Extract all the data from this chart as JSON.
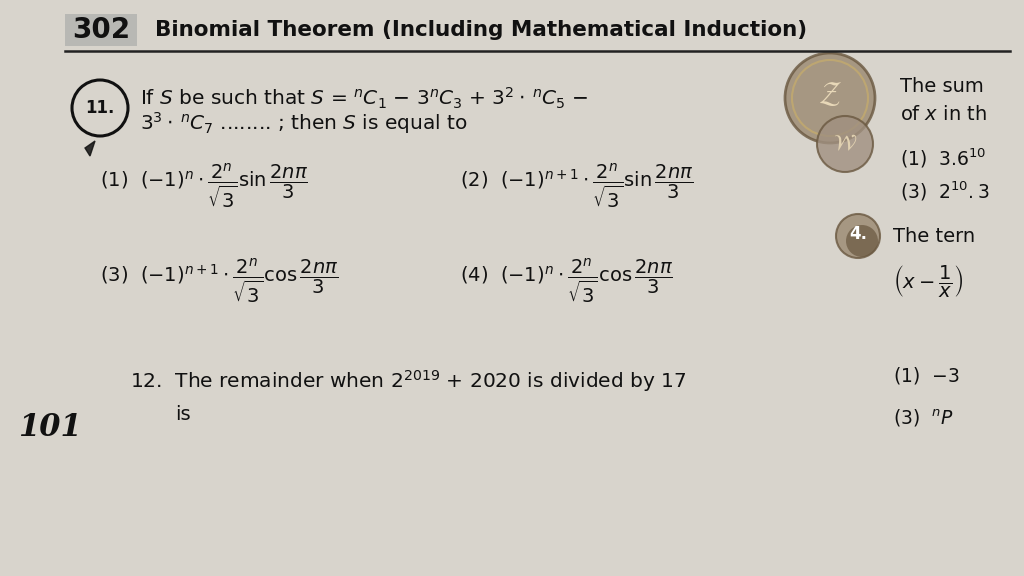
{
  "bg_color": "#d8d4cc",
  "title_number": "302",
  "title_text": "Binomial Theorem (Including Mathematical Induction)",
  "title_box_color": "#b0b0b0",
  "title_text_color": "#111111",
  "line_color": "#222222",
  "text_color": "#111111",
  "q11_line1": "If $S$ be such that $S$ = $^nC_1$ $-$ $3^nC_3$ $+$ $3^{2}\\cdot\\,^nC_5$ $-$",
  "q11_line2": "$3^3\\cdot\\,^nC_7$ ........ ; then $S$ is equal to",
  "opt1": "(1)  $(-1)^n\\cdot\\dfrac{2^n}{\\sqrt{3}}\\sin\\dfrac{2n\\pi}{3}$",
  "opt2": "(2)  $(-1)^{n+1}\\cdot\\dfrac{2^n}{\\sqrt{3}}\\sin\\dfrac{2n\\pi}{3}$",
  "opt3": "(3)  $(-1)^{n+1}\\cdot\\dfrac{2^n}{\\sqrt{3}}\\cos\\dfrac{2n\\pi}{3}$",
  "opt4": "(4)  $(-1)^{n}\\cdot\\dfrac{2^n}{\\sqrt{3}}\\cos\\dfrac{2n\\pi}{3}$",
  "q12_text": "12.  The remainder when $2^{2019}$ + 2020 is divided by 17",
  "q12_sub": "is",
  "side_text1": "The sum",
  "side_text2": "of $x$ in th",
  "side_opt1": "(1)  $3.6^{10}$",
  "side_opt2": "(3)  $2^{10}.3$",
  "side_q4text": "The tern",
  "side_expr": "$\\left(x-\\dfrac{1}{x}\\right)$",
  "side_ans1": "(1)  $-3$",
  "side_ans2": "(3)  $^nP$",
  "num101": "101"
}
